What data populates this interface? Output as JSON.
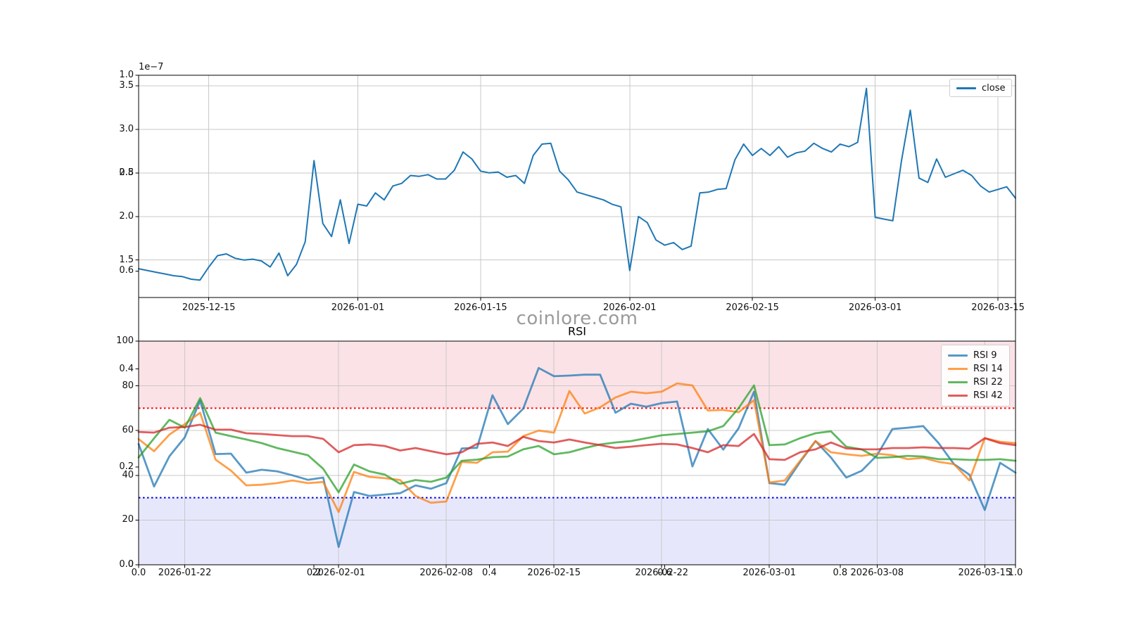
{
  "watermark": "coinlore.com",
  "overlay_axis": {
    "yticks": [
      {
        "label": "1.0",
        "f": 1.0
      },
      {
        "label": "0.8",
        "f": 0.8
      },
      {
        "label": "0.6",
        "f": 0.6
      },
      {
        "label": "0.4",
        "f": 0.4
      },
      {
        "label": "0.2",
        "f": 0.2
      },
      {
        "label": "0.0",
        "f": 0.0
      }
    ],
    "xticks": [
      {
        "label": "0.0",
        "f": 0.0
      },
      {
        "label": "0.2",
        "f": 0.2
      },
      {
        "label": "0.4",
        "f": 0.4
      },
      {
        "label": "0.6",
        "f": 0.6
      },
      {
        "label": "0.8",
        "f": 0.8
      },
      {
        "label": "1.0",
        "f": 1.0
      }
    ]
  },
  "chart_data": [
    {
      "type": "line",
      "title": "",
      "y_scale_label": "1e−7",
      "x_start_date": "2025-12-07",
      "x_end_date": "2026-03-17",
      "ylim": [
        1.07,
        3.62
      ],
      "grid": true,
      "legend_position": "upper right",
      "legend": [
        "close"
      ],
      "xticks": [
        {
          "label": "2025-12-15",
          "day": 8
        },
        {
          "label": "2026-01-01",
          "day": 25
        },
        {
          "label": "2026-01-15",
          "day": 39
        },
        {
          "label": "2026-02-01",
          "day": 56
        },
        {
          "label": "2026-02-15",
          "day": 70
        },
        {
          "label": "2026-03-01",
          "day": 84
        },
        {
          "label": "2026-03-15",
          "day": 98
        }
      ],
      "yticks": [
        {
          "label": "3.5",
          "v": 3.5
        },
        {
          "label": "3.0",
          "v": 3.0
        },
        {
          "label": "2.5",
          "v": 2.5
        },
        {
          "label": "2.0",
          "v": 2.0
        },
        {
          "label": "1.5",
          "v": 1.5
        }
      ],
      "series": [
        {
          "name": "close",
          "color": "#1f77b4",
          "unit": "1e-7",
          "values": [
            1.4,
            1.38,
            1.36,
            1.34,
            1.32,
            1.31,
            1.28,
            1.27,
            1.42,
            1.55,
            1.57,
            1.52,
            1.5,
            1.51,
            1.49,
            1.42,
            1.58,
            1.32,
            1.45,
            1.71,
            2.64,
            1.92,
            1.77,
            2.19,
            1.69,
            2.14,
            2.12,
            2.27,
            2.19,
            2.35,
            2.38,
            2.47,
            2.46,
            2.48,
            2.43,
            2.43,
            2.53,
            2.74,
            2.66,
            2.52,
            2.5,
            2.51,
            2.45,
            2.47,
            2.38,
            2.7,
            2.83,
            2.84,
            2.52,
            2.42,
            2.28,
            2.25,
            2.22,
            2.19,
            2.14,
            2.11,
            1.38,
            2.0,
            1.93,
            1.73,
            1.67,
            1.7,
            1.62,
            1.66,
            2.27,
            2.28,
            2.31,
            2.32,
            2.65,
            2.83,
            2.7,
            2.78,
            2.7,
            2.8,
            2.68,
            2.73,
            2.75,
            2.84,
            2.78,
            2.74,
            2.83,
            2.8,
            2.85,
            3.47,
            1.99,
            1.97,
            1.95,
            2.64,
            3.22,
            2.44,
            2.39,
            2.66,
            2.45,
            2.49,
            2.53,
            2.47,
            2.35,
            2.28,
            2.31,
            2.34,
            2.21
          ]
        }
      ]
    },
    {
      "type": "line",
      "title": "RSI",
      "x_start_date": "2026-01-19",
      "x_end_date": "2026-03-17",
      "ylim": [
        0,
        100
      ],
      "grid": true,
      "legend_position": "upper right",
      "legend": [
        "RSI 9",
        "RSI 14",
        "RSI 22",
        "RSI 42"
      ],
      "hlines": [
        {
          "v": 70,
          "color": "#ff0000",
          "style": "dotted"
        },
        {
          "v": 30,
          "color": "#0000dd",
          "style": "dotted"
        }
      ],
      "bands": [
        {
          "from": 70,
          "to": 100,
          "color": "rgba(220,20,60,0.12)",
          "meaning": "overbought"
        },
        {
          "from": 0,
          "to": 30,
          "color": "rgba(40,40,230,0.11)",
          "meaning": "oversold"
        }
      ],
      "xticks": [
        {
          "label": "2026-01-22",
          "day": 3
        },
        {
          "label": "2026-02-01",
          "day": 13
        },
        {
          "label": "2026-02-08",
          "day": 20
        },
        {
          "label": "2026-02-15",
          "day": 27
        },
        {
          "label": "2026-02-22",
          "day": 34
        },
        {
          "label": "2026-03-01",
          "day": 41
        },
        {
          "label": "2026-03-08",
          "day": 48
        },
        {
          "label": "2026-03-15",
          "day": 55
        }
      ],
      "yticks": [
        {
          "label": "100",
          "v": 100
        },
        {
          "label": "80",
          "v": 80
        },
        {
          "label": "60",
          "v": 60
        },
        {
          "label": "40",
          "v": 40
        },
        {
          "label": "20",
          "v": 20
        },
        {
          "label": "0",
          "v": 0
        }
      ],
      "series": [
        {
          "name": "RSI 9",
          "color": "rgba(31,119,180,0.75)",
          "values": [
            54,
            35,
            48.5,
            57,
            73.5,
            49.5,
            49.7,
            41.2,
            42.5,
            41.8,
            40,
            38,
            39,
            8,
            32.5,
            30.8,
            31.4,
            32,
            35.5,
            34,
            36.5,
            52,
            52.3,
            75.8,
            62.9,
            69.8,
            88,
            84.3,
            84.6,
            85,
            85,
            68,
            72,
            70.7,
            72.3,
            73,
            44,
            60.7,
            51.5,
            61,
            77.4,
            36.5,
            35.8,
            46,
            55.3,
            48,
            39,
            42,
            49,
            60.7,
            61.3,
            62,
            54.4,
            45,
            40.3,
            24.5,
            45.6,
            41.2
          ]
        },
        {
          "name": "RSI 14",
          "color": "rgba(255,127,14,0.75)",
          "values": [
            56.2,
            50.8,
            58.2,
            62.9,
            68,
            47,
            42.1,
            35.5,
            35.8,
            36.5,
            37.7,
            36.5,
            37,
            23.6,
            41.5,
            39.3,
            38.7,
            37.9,
            30.8,
            27.7,
            28.3,
            46,
            45.6,
            50.3,
            50.6,
            57.5,
            60,
            59.1,
            77.7,
            67.6,
            70.4,
            74.8,
            77.4,
            76.7,
            77.4,
            81.1,
            80.2,
            69,
            69.2,
            68.2,
            73.6,
            36.8,
            37.7,
            46.5,
            55.3,
            50.3,
            49.4,
            48.7,
            49.7,
            49,
            47.2,
            47.8,
            46,
            45,
            37.7,
            56.6,
            55,
            54.4
          ]
        },
        {
          "name": "RSI 22",
          "color": "rgba(44,160,44,0.75)",
          "values": [
            48,
            56.5,
            64.8,
            61.3,
            74.5,
            59.1,
            57.5,
            56,
            54.4,
            52.2,
            50.6,
            49,
            42.9,
            32.4,
            44.8,
            41.8,
            40.3,
            36.2,
            37.9,
            37.1,
            39,
            46.5,
            47,
            48.1,
            48.4,
            51.6,
            53.1,
            49.4,
            50.3,
            52.2,
            53.8,
            54.7,
            55.3,
            56.6,
            57.9,
            58.5,
            59.1,
            59.7,
            62,
            70,
            80.2,
            53.5,
            53.8,
            56.6,
            58.8,
            59.7,
            52.8,
            51.6,
            47.8,
            48.1,
            48.7,
            48.4,
            47.2,
            47.2,
            46.9,
            46.9,
            47.2,
            46.5
          ]
        },
        {
          "name": "RSI 42",
          "color": "rgba(214,39,40,0.75)",
          "values": [
            59.4,
            59.1,
            61.3,
            61.6,
            62.6,
            60.4,
            60.4,
            58.8,
            58.5,
            58,
            57.5,
            57.5,
            56.3,
            50.3,
            53.5,
            53.8,
            53.1,
            51.1,
            52.2,
            50.8,
            49.4,
            50.3,
            54.1,
            54.7,
            53.1,
            57.2,
            55.3,
            54.7,
            56,
            54.7,
            53.5,
            52.2,
            52.8,
            53.5,
            54.1,
            53.8,
            52.2,
            50.3,
            53.5,
            53.1,
            58.5,
            47.2,
            46.9,
            50.3,
            51.6,
            54.7,
            52,
            51.6,
            51.6,
            52.2,
            52.2,
            52.5,
            52.2,
            52.2,
            51.9,
            56.6,
            54.4,
            53.5
          ]
        }
      ]
    }
  ]
}
